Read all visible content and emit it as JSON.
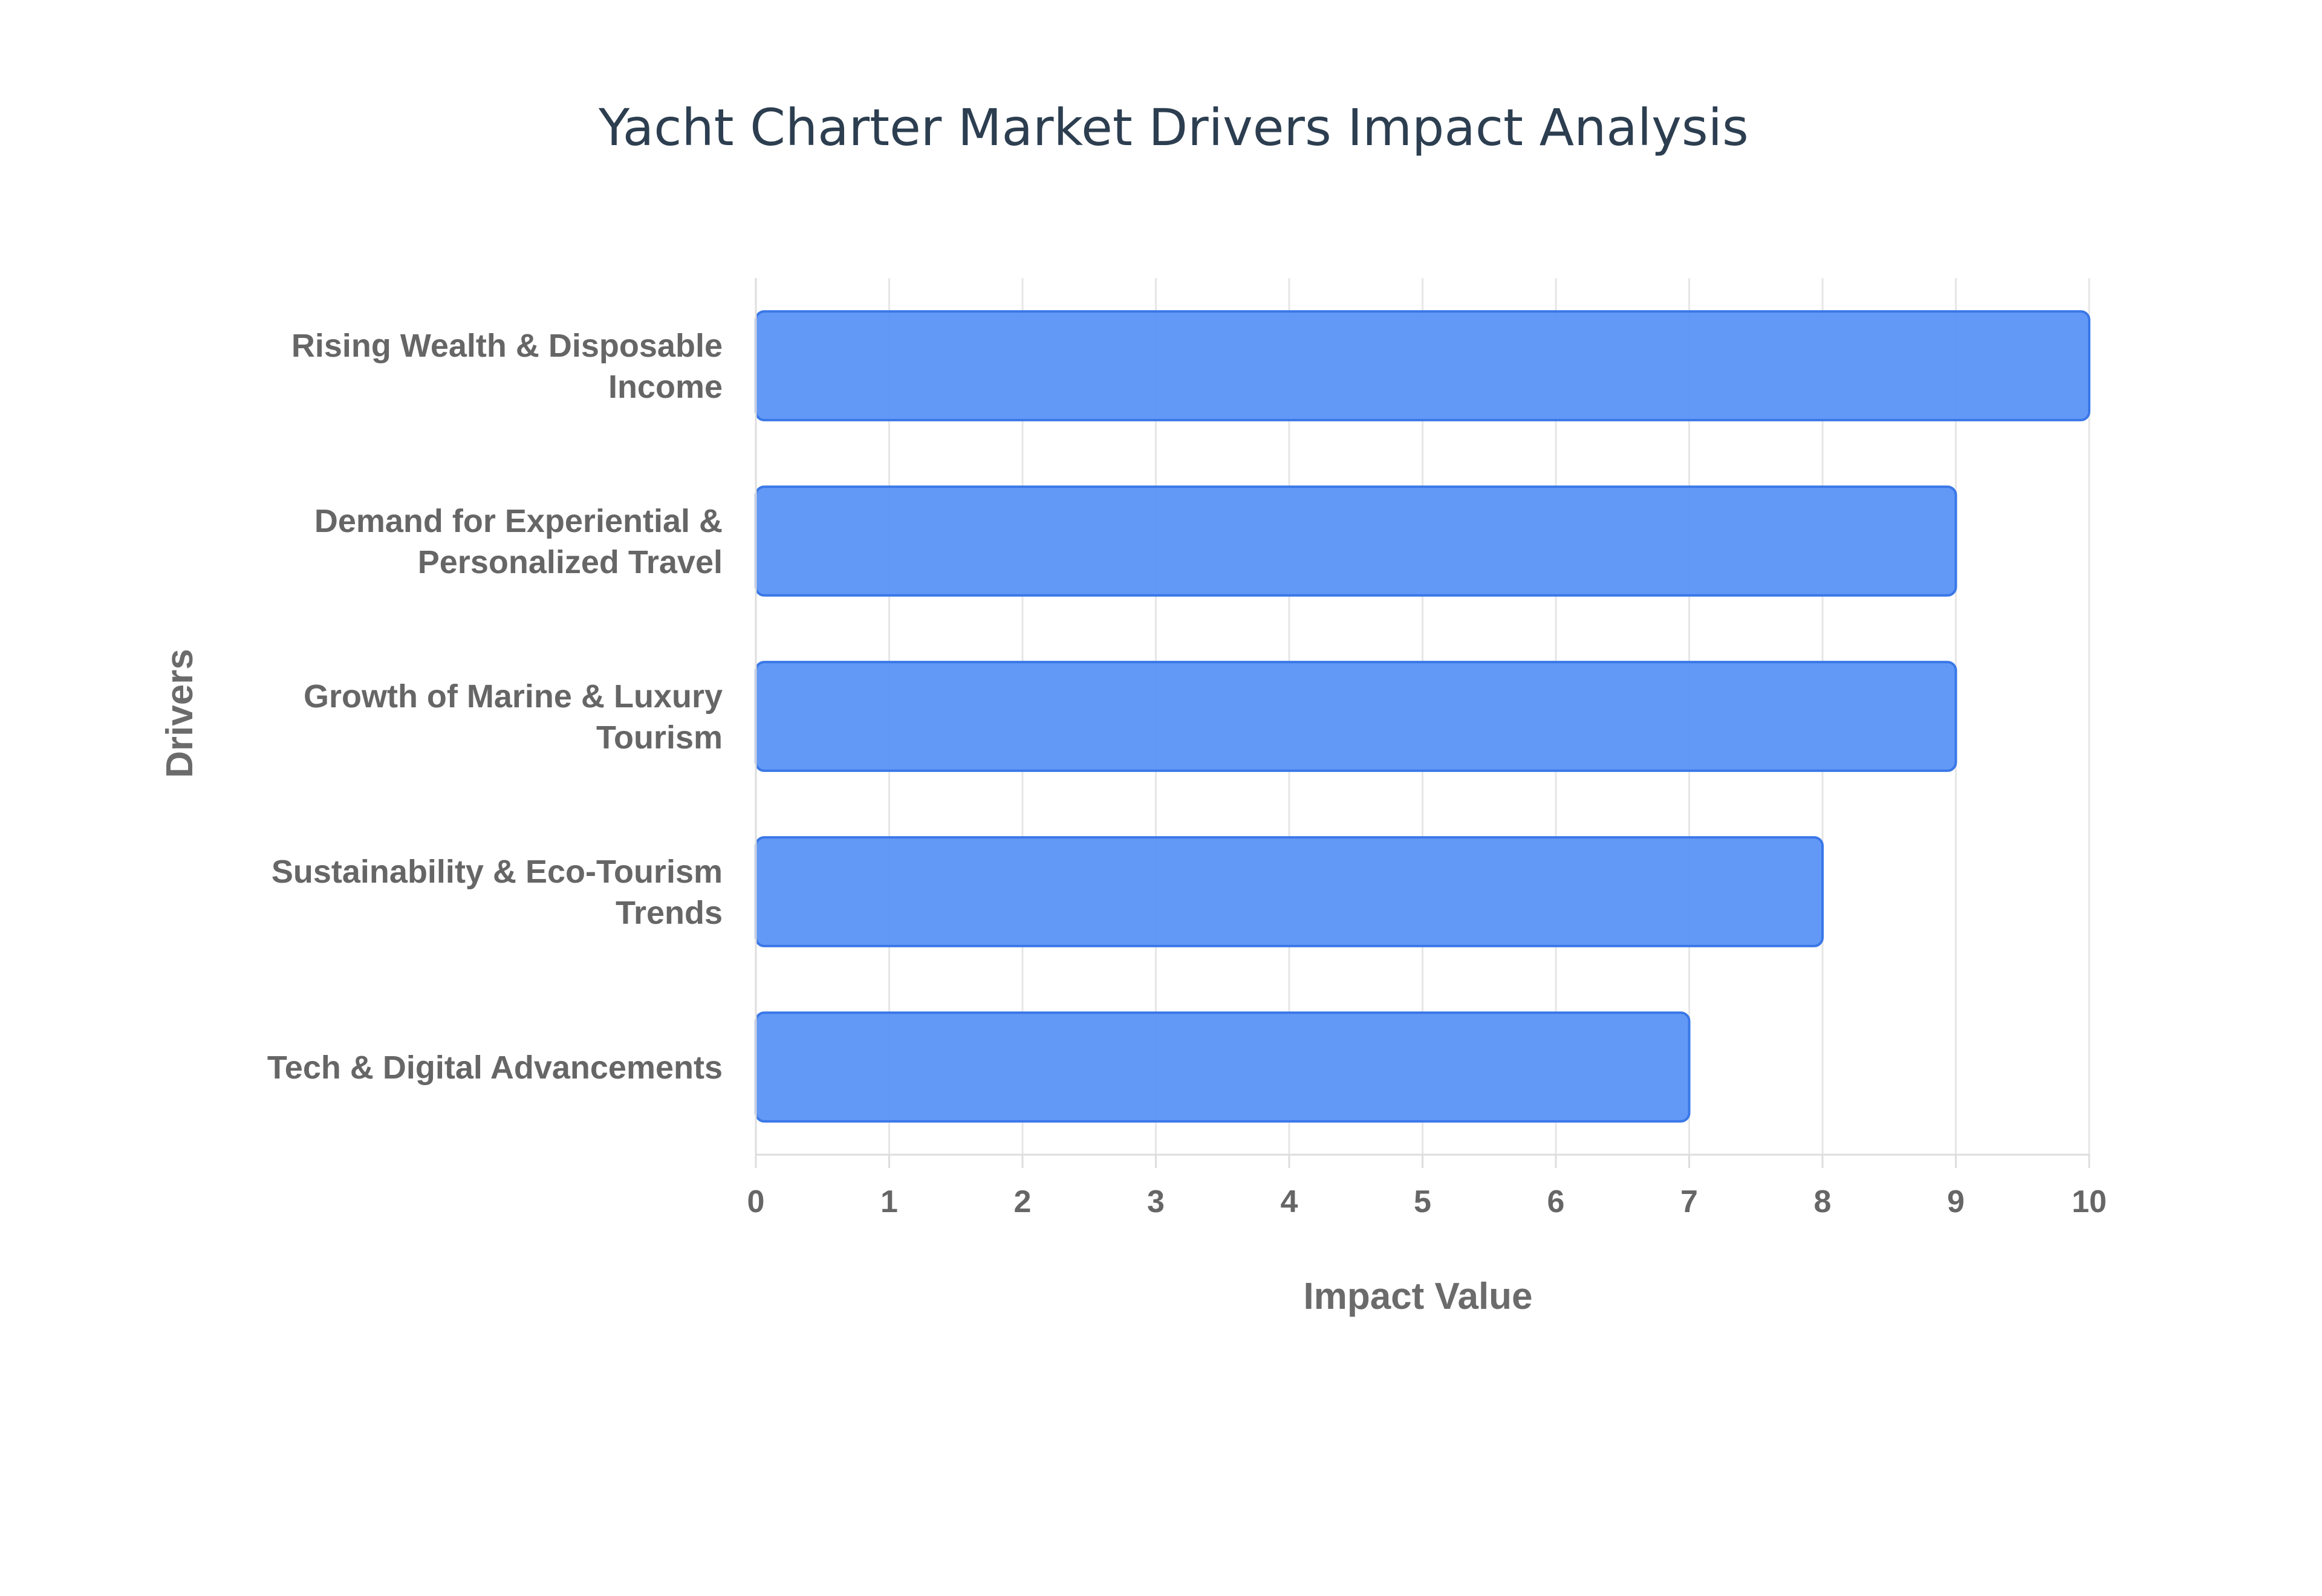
{
  "chart_data": {
    "type": "bar",
    "orientation": "horizontal",
    "title": "Yacht Charter Market Drivers Impact Analysis",
    "xlabel": "Impact Value",
    "ylabel": "Drivers",
    "xlim": [
      0,
      10
    ],
    "x_ticks": [
      "0",
      "1",
      "2",
      "3",
      "4",
      "5",
      "6",
      "7",
      "8",
      "9",
      "10"
    ],
    "categories": [
      [
        "Rising Wealth & Disposable",
        "Income"
      ],
      [
        "Demand for Experiential &",
        "Personalized Travel"
      ],
      [
        "Growth of Marine & Luxury",
        "Tourism"
      ],
      [
        "Sustainability & Eco-Tourism",
        "Trends"
      ],
      [
        "Tech & Digital Advancements"
      ]
    ],
    "values": [
      10,
      9,
      9,
      8,
      7
    ],
    "grid": true,
    "legend": "none",
    "colors": {
      "bar_fill": "#5b93f5",
      "bar_stroke": "#3a78e8",
      "title": "#2c3e50",
      "labels": "#666666"
    }
  }
}
